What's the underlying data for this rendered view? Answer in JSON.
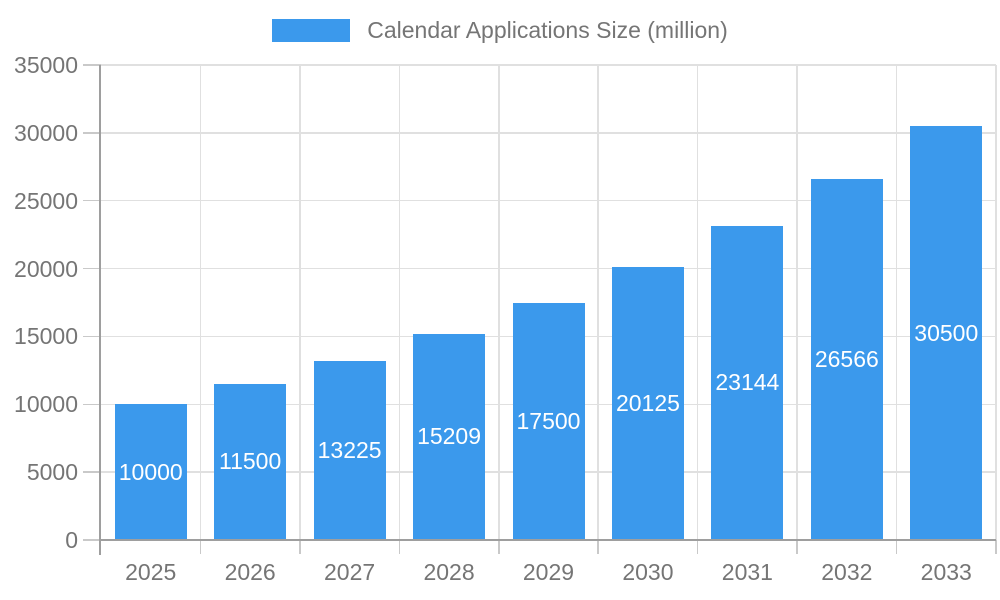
{
  "legend": {
    "label": "Calendar Applications Size (million)"
  },
  "chart_data": {
    "type": "bar",
    "title": "Calendar Applications Size (million)",
    "series_name": "Calendar Applications Size (million)",
    "categories": [
      "2025",
      "2026",
      "2027",
      "2028",
      "2029",
      "2030",
      "2031",
      "2032",
      "2033"
    ],
    "values": [
      10000,
      11500,
      13225,
      15209,
      17500,
      20125,
      23144,
      26566,
      30500
    ],
    "bar_labels": [
      "10000",
      "11500",
      "13225",
      "15209",
      "17500",
      "20125",
      "23144",
      "26566",
      "30500"
    ],
    "xlabel": "",
    "ylabel": "",
    "ylim": [
      0,
      35000
    ],
    "yticks": [
      0,
      5000,
      10000,
      15000,
      20000,
      25000,
      30000,
      35000
    ],
    "grid": true,
    "legend_position": "top",
    "bar_labels_visible": true,
    "bar_label_position": "inside-center",
    "colors": {
      "bar": "#3B99EC",
      "bar_label": "#FFFFFF",
      "axis_text": "#757575",
      "grid_line": "#E0E0E0",
      "axis_line": "#9E9E9E",
      "tick": "#C9C9C9",
      "background": "#FFFFFF"
    }
  }
}
